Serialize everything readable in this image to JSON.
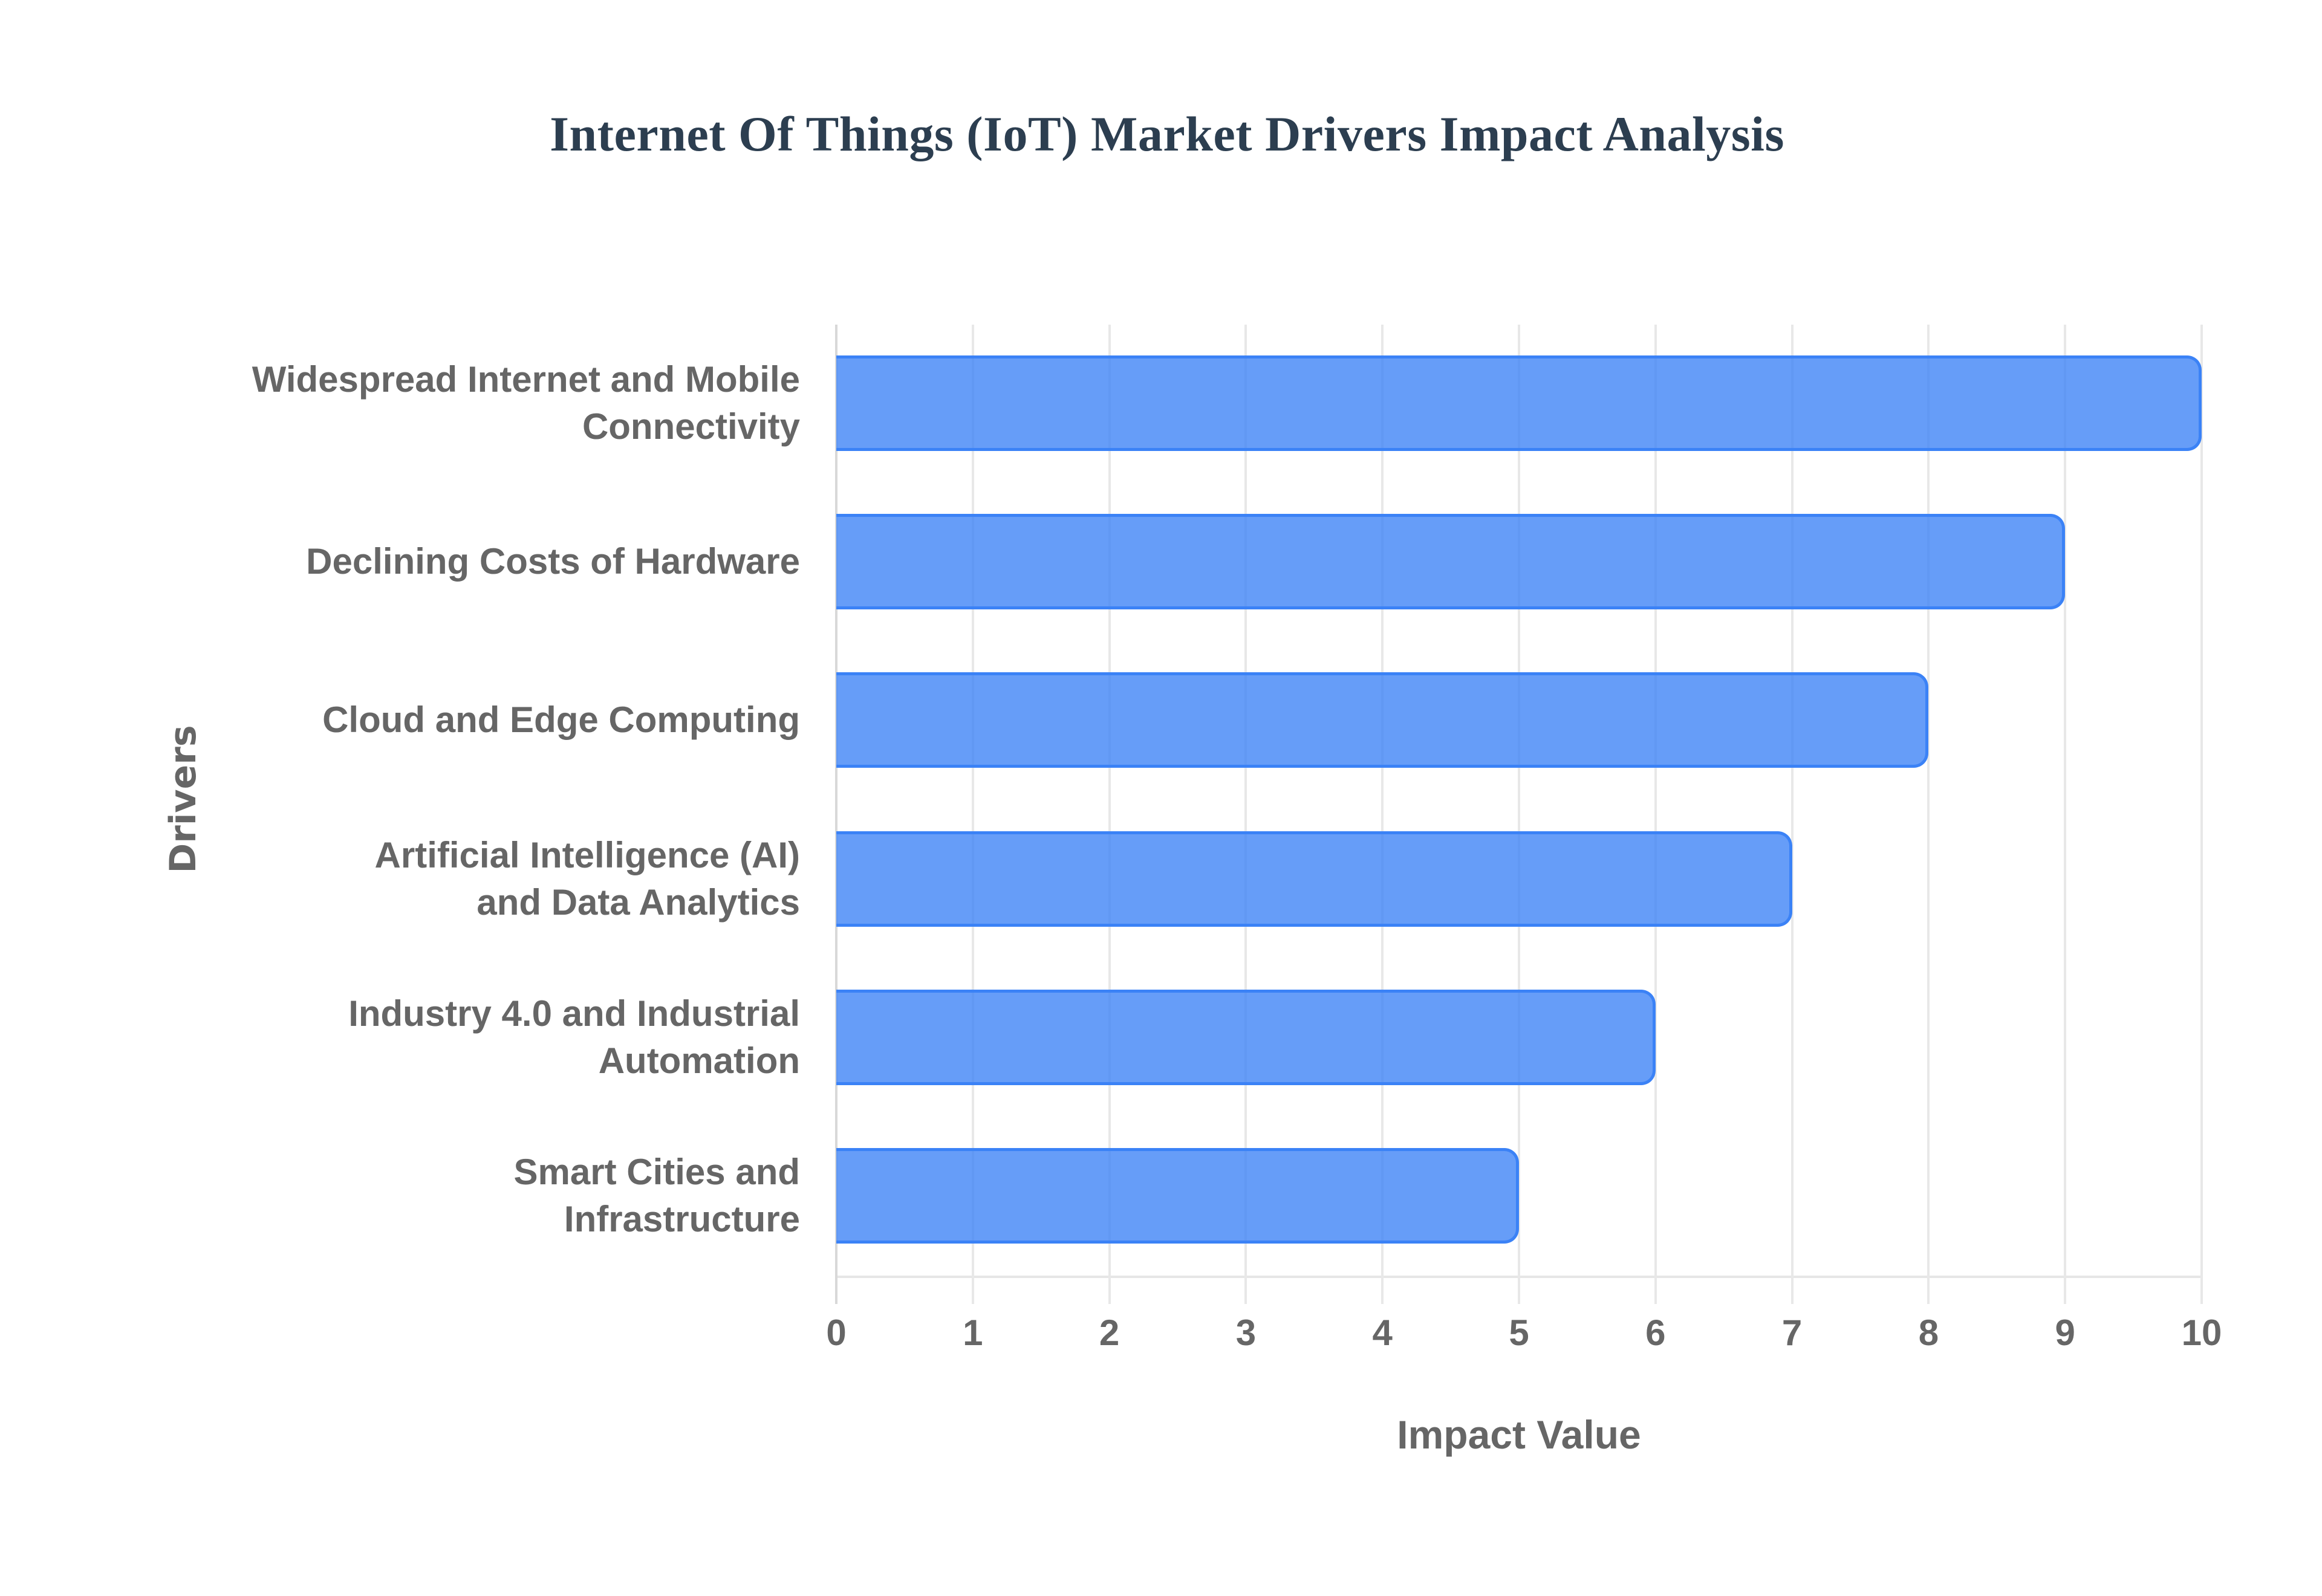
{
  "chart": {
    "title": "Internet Of Things (IoT) Market Drivers Impact Analysis",
    "xlabel": "Impact Value",
    "ylabel": "Drivers",
    "ticks": [
      "0",
      "1",
      "2",
      "3",
      "4",
      "5",
      "6",
      "7",
      "8",
      "9",
      "10"
    ],
    "bar_fill": "#6499f4",
    "bar_border": "#3b82f6",
    "title_color": "#2c3e50",
    "label_color": "#666666"
  },
  "chart_data": {
    "type": "bar",
    "orientation": "horizontal",
    "title": "Internet Of Things (IoT) Market Drivers Impact Analysis",
    "xlabel": "Impact Value",
    "ylabel": "Drivers",
    "categories": [
      "Widespread Internet and Mobile Connectivity",
      "Declining Costs of Hardware",
      "Cloud and Edge Computing",
      "Artificial Intelligence (AI) and Data Analytics",
      "Industry 4.0 and Industrial Automation",
      "Smart Cities and Infrastructure"
    ],
    "values": [
      10,
      9,
      8,
      7,
      6,
      5
    ],
    "xlim": [
      0,
      10
    ],
    "xticks": [
      0,
      1,
      2,
      3,
      4,
      5,
      6,
      7,
      8,
      9,
      10
    ],
    "grid": true,
    "legend": "none",
    "colors": {
      "fill": "#6499f4",
      "border": "#3b82f6"
    }
  },
  "labels": [
    {
      "line1": "Widespread Internet and Mobile",
      "line2": "Connectivity"
    },
    {
      "line1": "Declining Costs of Hardware",
      "line2": ""
    },
    {
      "line1": "Cloud and Edge Computing",
      "line2": ""
    },
    {
      "line1": "Artificial Intelligence (AI)",
      "line2": "and Data Analytics"
    },
    {
      "line1": "Industry 4.0 and Industrial",
      "line2": "Automation"
    },
    {
      "line1": "Smart Cities and",
      "line2": "Infrastructure"
    }
  ]
}
